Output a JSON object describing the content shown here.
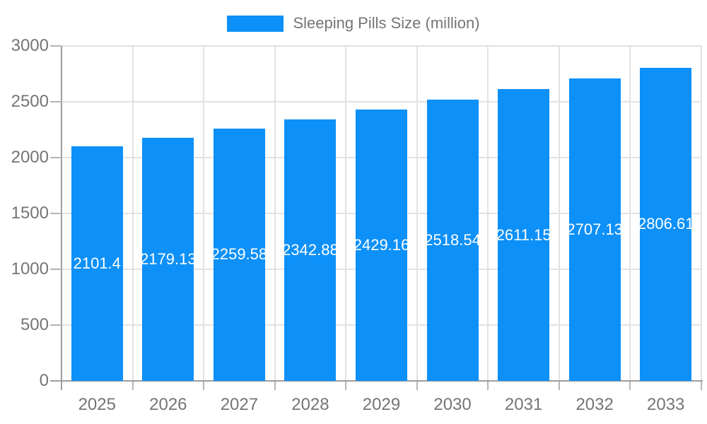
{
  "chart_data": {
    "type": "bar",
    "title": "",
    "legend": {
      "label": "Sleeping Pills Size (million)",
      "position": "top"
    },
    "categories": [
      "2025",
      "2026",
      "2027",
      "2028",
      "2029",
      "2030",
      "2031",
      "2032",
      "2033"
    ],
    "series": [
      {
        "name": "Sleeping Pills Size (million)",
        "values": [
          2101.4,
          2179.13,
          2259.58,
          2342.88,
          2429.16,
          2518.54,
          2611.15,
          2707.13,
          2806.61
        ]
      }
    ],
    "bar_labels": [
      "2101.4",
      "2179.13",
      "2259.58",
      "2342.88",
      "2429.16",
      "2518.54",
      "2611.15",
      "2707.13",
      "2806.61"
    ],
    "xlabel": "",
    "ylabel": "",
    "ylim": [
      0,
      3000
    ],
    "y_ticks": [
      "0",
      "500",
      "1000",
      "1500",
      "2000",
      "2500",
      "3000"
    ],
    "grid": true,
    "colors": {
      "bar": "#0d90f8",
      "axis": "#9e9e9e",
      "tick": "#b5b5b5",
      "gridline": "#e2e2e2",
      "text": "#757575",
      "bar_label": "#ffffff",
      "background": "#ffffff"
    }
  }
}
